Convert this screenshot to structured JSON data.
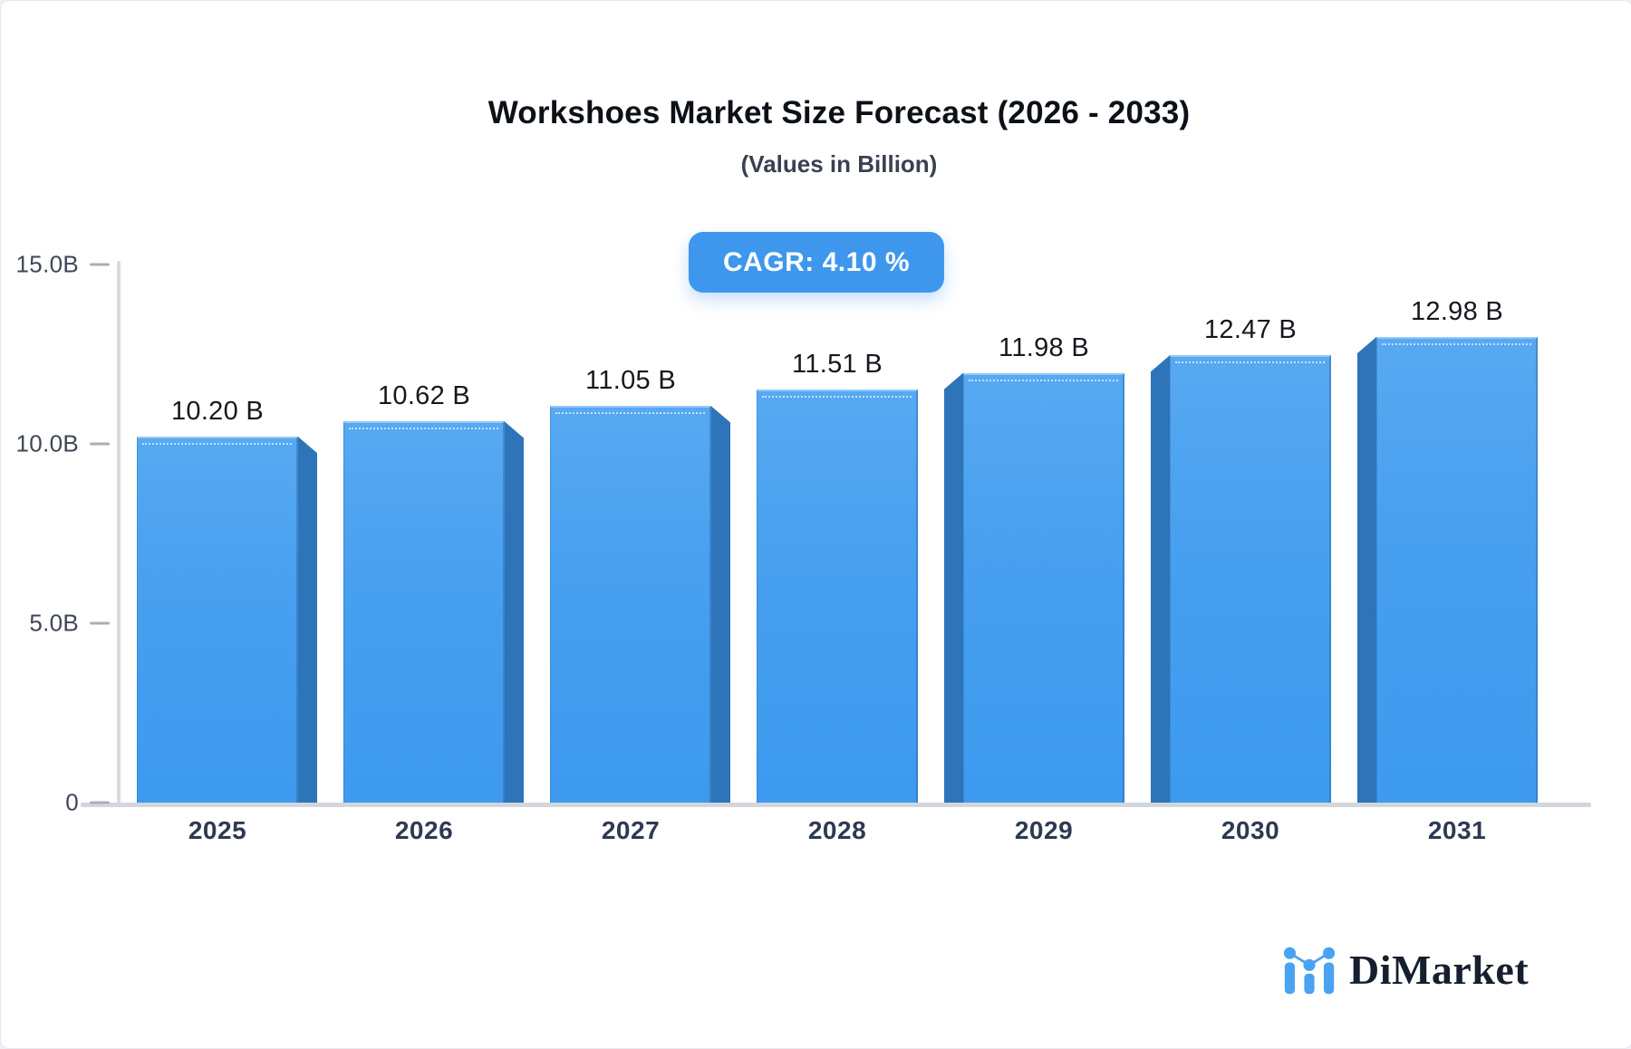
{
  "header": {
    "title": "Workshoes Market Size Forecast (2026 - 2033)",
    "subtitle": "(Values in Billion)",
    "cagr_label": "CAGR: 4.10 %"
  },
  "chart_data": {
    "type": "bar",
    "title": "Workshoes Market Size Forecast (2026 - 2033)",
    "subtitle": "(Values in Billion)",
    "cagr_badge": "CAGR: 4.10 %",
    "categories": [
      "2025",
      "2026",
      "2027",
      "2028",
      "2029",
      "2030",
      "2031"
    ],
    "values": [
      10.2,
      10.62,
      11.05,
      11.51,
      11.98,
      12.47,
      12.98
    ],
    "value_labels": [
      "10.20 B",
      "10.62 B",
      "11.05 B",
      "11.51 B",
      "11.98 B",
      "12.47 B",
      "12.98 B"
    ],
    "unit": "Billion",
    "ylim": [
      0,
      15
    ],
    "yticks": [
      {
        "value": 0,
        "label": "0"
      },
      {
        "value": 5,
        "label": "5.0B"
      },
      {
        "value": 10,
        "label": "10.0B"
      },
      {
        "value": 15,
        "label": "15.0B"
      }
    ],
    "grid": false,
    "legend": false,
    "bar_color": "#479fef",
    "bar_side_color": "#2e74b8",
    "accent_color": "#3e97ec"
  },
  "branding": {
    "logo_text": "DiMarket",
    "logo_icon": "bar-chart-icon",
    "logo_color": "#4aa2f2"
  }
}
